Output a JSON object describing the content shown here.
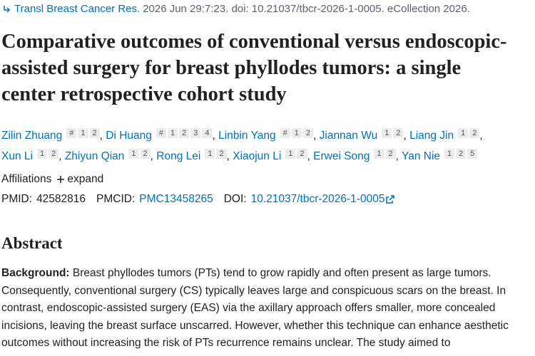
{
  "citation": {
    "journal": "Transl Breast Cancer Res.",
    "details": "2026 Jun 29:7:23. doi: 10.21037/tbcr-2026-1-0005. eCollection 2026."
  },
  "title": "Comparative outcomes of conventional versus endoscopic-assisted surgery for breast phyllodes tumors: a single center retrospective cohort study",
  "author_separator": ",",
  "authors": [
    {
      "name": "Zilin Zhuang",
      "sups": [
        "#",
        "1",
        "2"
      ]
    },
    {
      "name": "Di Huang",
      "sups": [
        "#",
        "1",
        "2",
        "3",
        "4"
      ]
    },
    {
      "name": "Linbin Yang",
      "sups": [
        "#",
        "1",
        "2"
      ]
    },
    {
      "name": "Jiannan Wu",
      "sups": [
        "1",
        "2"
      ]
    },
    {
      "name": "Liang Jin",
      "sups": [
        "1",
        "2"
      ]
    },
    {
      "name": "Xun Li",
      "sups": [
        "1",
        "2"
      ]
    },
    {
      "name": "Zhiyun Qian",
      "sups": [
        "1",
        "2"
      ]
    },
    {
      "name": "Rong Lei",
      "sups": [
        "1",
        "2"
      ]
    },
    {
      "name": "Xiaojun Li",
      "sups": [
        "1",
        "2"
      ]
    },
    {
      "name": "Erwei Song",
      "sups": [
        "1",
        "2"
      ]
    },
    {
      "name": "Yan Nie",
      "sups": [
        "1",
        "2",
        "5"
      ]
    }
  ],
  "affiliations": {
    "label": "Affiliations",
    "toggle": "expand"
  },
  "identifiers": [
    {
      "label": "PMID:",
      "value": "42582816",
      "link": false
    },
    {
      "label": "PMCID:",
      "value": "PMC13458265",
      "link": true
    },
    {
      "label": "DOI:",
      "value": "10.21037/tbcr-2026-1-0005",
      "link": true
    }
  ],
  "abstract": {
    "heading": "Abstract",
    "sections": [
      {
        "label": "Background:",
        "text": "Breast phyllodes tumors (PTs) tend to grow rapidly and often present as large tumors. Consequently, conventional surgery (CS) typically leaves large and conspicuous scars on the breast. In contrast, endoscopic-assisted surgery (EAS) via the axillary approach offers smaller, more concealed incisions, leaving the breast surface unscarred. However, whether this technique can enhance aesthetic outcomes without increasing the risk of PTs recurrence remains unclear. The study aimed to"
      }
    ]
  }
}
